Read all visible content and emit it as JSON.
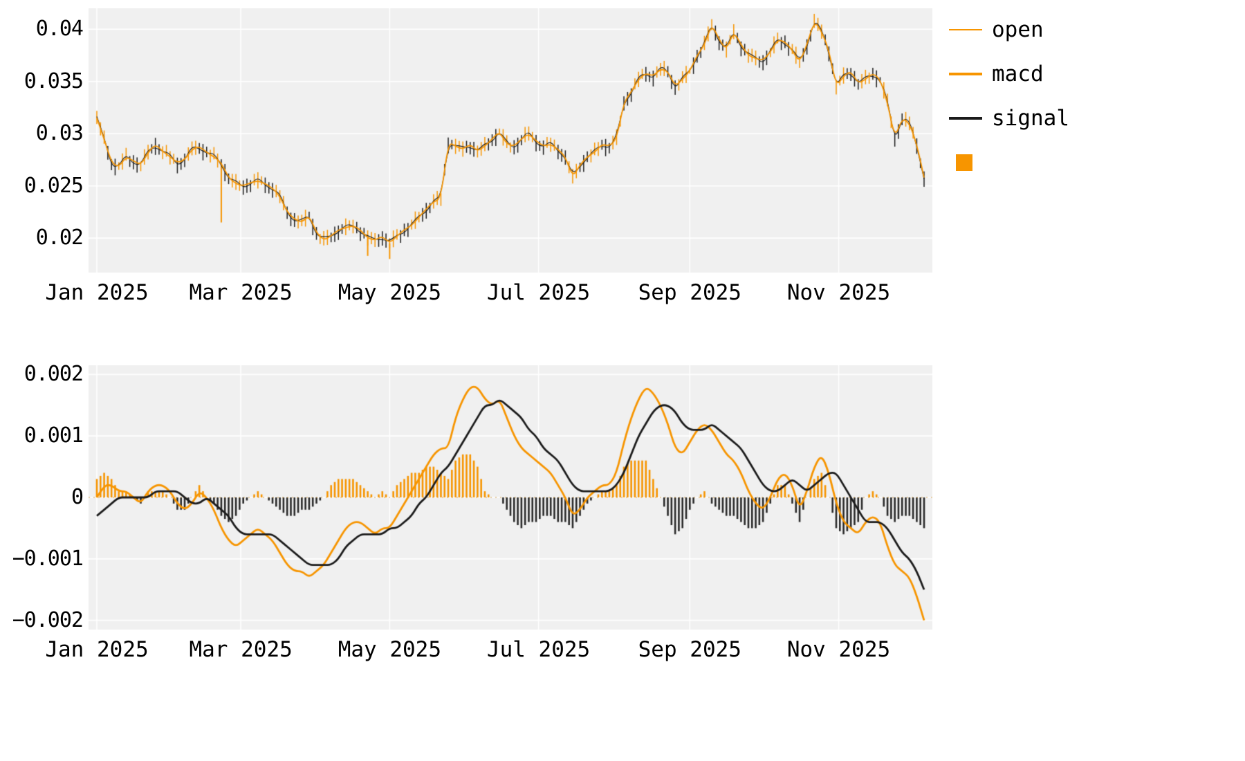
{
  "figure": {
    "background": "#ffffff",
    "panel_background": "#f0f0f0",
    "grid_color": "#ffffff",
    "orange": "#f79500",
    "black": "#1b1b1b"
  },
  "legend": {
    "items": [
      {
        "label": "open",
        "kind": "line",
        "color": "#f79500",
        "weight": 2
      },
      {
        "label": "macd",
        "kind": "line",
        "color": "#f79500",
        "weight": 4
      },
      {
        "label": "signal",
        "kind": "line",
        "color": "#1b1b1b",
        "weight": 4
      },
      {
        "label": "",
        "kind": "square",
        "color": "#f79500"
      }
    ]
  },
  "chart_data": [
    {
      "type": "line",
      "panel": "price",
      "title": "",
      "xlabel": "",
      "ylabel": "",
      "x_unit": "days from 2025-01-01",
      "x_step_days": 3,
      "ylim": [
        0.0167,
        0.042
      ],
      "grid": true,
      "y_ticks": {
        "values": [
          0.04,
          0.035,
          0.03,
          0.025,
          0.02
        ],
        "labels": [
          "0.04",
          "0.035",
          "0.03",
          "0.025",
          "0.02"
        ]
      },
      "x_ticks": {
        "day_offsets": [
          0,
          59,
          120,
          181,
          243,
          304
        ],
        "labels": [
          "Jan 2025",
          "Mar 2025",
          "May 2025",
          "Jul 2025",
          "Sep 2025",
          "Nov 2025"
        ]
      },
      "series": [
        {
          "name": "open",
          "color": "#f79500",
          "values": [
            0.0315,
            0.0295,
            0.0272,
            0.0268,
            0.0278,
            0.0274,
            0.027,
            0.0282,
            0.029,
            0.0283,
            0.0278,
            0.0272,
            0.0275,
            0.0285,
            0.0288,
            0.0282,
            0.0278,
            0.0272,
            0.0258,
            0.0252,
            0.025,
            0.0253,
            0.0255,
            0.0252,
            0.0248,
            0.024,
            0.0225,
            0.0218,
            0.0215,
            0.0222,
            0.0205,
            0.0198,
            0.0202,
            0.0208,
            0.021,
            0.0212,
            0.0208,
            0.02,
            0.0198,
            0.0202,
            0.0195,
            0.0202,
            0.0208,
            0.0212,
            0.022,
            0.0228,
            0.0235,
            0.0238,
            0.0292,
            0.0288,
            0.0285,
            0.029,
            0.0283,
            0.0288,
            0.0295,
            0.0302,
            0.029,
            0.0288,
            0.0295,
            0.03,
            0.0293,
            0.0288,
            0.029,
            0.0285,
            0.0278,
            0.0258,
            0.027,
            0.0278,
            0.0282,
            0.029,
            0.0288,
            0.0295,
            0.033,
            0.034,
            0.0352,
            0.0358,
            0.0355,
            0.0362,
            0.036,
            0.0345,
            0.0352,
            0.036,
            0.0375,
            0.0385,
            0.0405,
            0.039,
            0.038,
            0.0398,
            0.0385,
            0.0375,
            0.0372,
            0.037,
            0.0378,
            0.039,
            0.0388,
            0.038,
            0.0368,
            0.0385,
            0.0408,
            0.0398,
            0.038,
            0.0345,
            0.0355,
            0.036,
            0.0348,
            0.0352,
            0.0358,
            0.0352,
            0.033,
            0.0295,
            0.0315,
            0.031,
            0.029,
            0.0258
          ]
        }
      ],
      "spikes": [
        {
          "index": 17,
          "low": 0.0215
        },
        {
          "index": 37,
          "low": 0.0183
        },
        {
          "index": 40,
          "low": 0.018
        }
      ]
    },
    {
      "type": "line+bar",
      "panel": "macd",
      "title": "",
      "xlabel": "",
      "ylabel": "",
      "x_unit": "days from 2025-01-01",
      "x_step_days": 3,
      "ylim": [
        -0.00215,
        0.00215
      ],
      "grid": true,
      "histogram": "macd_minus_signal",
      "y_ticks": {
        "values": [
          0.002,
          0.001,
          0,
          -0.001,
          -0.002
        ],
        "labels": [
          "0.002",
          "0.001",
          "0",
          "−0.001",
          "−0.002"
        ]
      },
      "x_ticks": {
        "day_offsets": [
          0,
          59,
          120,
          181,
          243,
          304
        ],
        "labels": [
          "Jan 2025",
          "Mar 2025",
          "May 2025",
          "Jul 2025",
          "Sep 2025",
          "Nov 2025"
        ]
      },
      "series": [
        {
          "name": "macd",
          "color": "#f79500",
          "values": [
            0.0,
            0.0002,
            0.0002,
            0.0001,
            0.0001,
            0.0,
            -0.0001,
            0.0001,
            0.0002,
            0.0002,
            0.0001,
            -0.0001,
            -0.0002,
            -0.0001,
            0.0001,
            0.0,
            -0.0002,
            -0.0005,
            -0.0007,
            -0.0008,
            -0.0007,
            -0.0006,
            -0.0005,
            -0.0006,
            -0.0007,
            -0.0009,
            -0.0011,
            -0.0012,
            -0.0012,
            -0.0013,
            -0.0012,
            -0.0011,
            -0.0009,
            -0.0007,
            -0.0005,
            -0.0004,
            -0.0004,
            -0.0005,
            -0.0006,
            -0.0005,
            -0.0005,
            -0.0003,
            -0.0001,
            0.0001,
            0.0003,
            0.0005,
            0.0007,
            0.0008,
            0.0008,
            0.0013,
            0.0016,
            0.0018,
            0.0018,
            0.0016,
            0.0015,
            0.0016,
            0.0013,
            0.001,
            0.0008,
            0.0007,
            0.0006,
            0.0005,
            0.0004,
            0.0002,
            0.0,
            -0.0003,
            -0.0002,
            0.0,
            0.0001,
            0.0002,
            0.0002,
            0.0004,
            0.0009,
            0.0013,
            0.0016,
            0.0018,
            0.0017,
            0.0015,
            0.0012,
            0.0008,
            0.0007,
            0.0009,
            0.0011,
            0.0012,
            0.0011,
            0.0009,
            0.0007,
            0.0006,
            0.0004,
            0.0001,
            -0.0001,
            -0.0002,
            0.0,
            0.0003,
            0.0004,
            0.0002,
            -0.0002,
            0.0001,
            0.0005,
            0.0007,
            0.0004,
            -0.0001,
            -0.0004,
            -0.0005,
            -0.0006,
            -0.0004,
            -0.0003,
            -0.0004,
            -0.0008,
            -0.0011,
            -0.0012,
            -0.0013,
            -0.0016,
            -0.002
          ]
        },
        {
          "name": "signal",
          "color": "#1b1b1b",
          "values": [
            -0.0003,
            -0.0002,
            -0.0001,
            0.0,
            0.0,
            0.0,
            0.0,
            0.0,
            0.0001,
            0.0001,
            0.0001,
            0.0001,
            0.0,
            -0.0001,
            -0.0001,
            0.0,
            -0.0001,
            -0.0002,
            -0.0003,
            -0.0005,
            -0.0006,
            -0.0006,
            -0.0006,
            -0.0006,
            -0.0006,
            -0.0007,
            -0.0008,
            -0.0009,
            -0.001,
            -0.0011,
            -0.0011,
            -0.0011,
            -0.0011,
            -0.001,
            -0.0008,
            -0.0007,
            -0.0006,
            -0.0006,
            -0.0006,
            -0.0006,
            -0.0005,
            -0.0005,
            -0.0004,
            -0.0003,
            -0.0001,
            0.0,
            0.0002,
            0.0004,
            0.0005,
            0.0007,
            0.0009,
            0.0011,
            0.0013,
            0.0015,
            0.0015,
            0.0016,
            0.0015,
            0.0014,
            0.0013,
            0.0011,
            0.001,
            0.0008,
            0.0007,
            0.0006,
            0.0004,
            0.0002,
            0.0001,
            0.0001,
            0.0001,
            0.0001,
            0.0001,
            0.0002,
            0.0004,
            0.0007,
            0.001,
            0.0012,
            0.0014,
            0.0015,
            0.0015,
            0.0014,
            0.0012,
            0.0011,
            0.0011,
            0.0011,
            0.0012,
            0.0011,
            0.001,
            0.0009,
            0.0008,
            0.0006,
            0.0004,
            0.0002,
            0.0001,
            0.0001,
            0.0002,
            0.0003,
            0.0002,
            0.0001,
            0.0002,
            0.0003,
            0.0004,
            0.0004,
            0.0002,
            0.0,
            -0.0002,
            -0.0004,
            -0.0004,
            -0.0004,
            -0.0005,
            -0.0007,
            -0.0009,
            -0.001,
            -0.0012,
            -0.0015
          ]
        }
      ]
    }
  ]
}
